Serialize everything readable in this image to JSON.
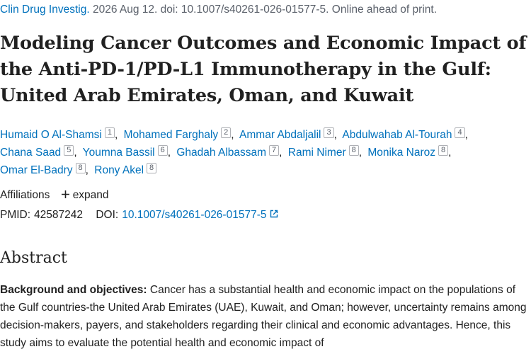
{
  "citation": {
    "journal": "Clin Drug Investig.",
    "details": "2026 Aug 12. doi: 10.1007/s40261-026-01577-5. Online ahead of print."
  },
  "title": "Modeling Cancer Outcomes and Economic Impact of the Anti-PD-1/PD-L1 Immunotherapy in the Gulf: United Arab Emirates, Oman, and Kuwait",
  "authors": [
    {
      "name": "Humaid O Al-Shamsi",
      "affiliation": "1"
    },
    {
      "name": "Mohamed Farghaly",
      "affiliation": "2"
    },
    {
      "name": "Ammar Abdaljalil",
      "affiliation": "3"
    },
    {
      "name": "Abdulwahab Al-Tourah",
      "affiliation": "4"
    },
    {
      "name": "Chana Saad",
      "affiliation": "5"
    },
    {
      "name": "Youmna Bassil",
      "affiliation": "6"
    },
    {
      "name": "Ghadah Albassam",
      "affiliation": "7"
    },
    {
      "name": "Rami Nimer",
      "affiliation": "8"
    },
    {
      "name": "Monika Naroz",
      "affiliation": "8"
    },
    {
      "name": "Omar El-Badry",
      "affiliation": "8"
    },
    {
      "name": "Rony Akel",
      "affiliation": "8"
    }
  ],
  "affiliations": {
    "label": "Affiliations",
    "toggle": "expand"
  },
  "identifiers": {
    "pmid_label": "PMID:",
    "pmid": "42587242",
    "doi_label": "DOI:",
    "doi": "10.1007/s40261-026-01577-5"
  },
  "abstract": {
    "heading": "Abstract",
    "label": "Background and objectives:",
    "text": "Cancer has a substantial health and economic impact on the populations of the Gulf countries-the United Arab Emirates (UAE), Kuwait, and Oman; however, uncertainty remains among decision-makers, payers, and stakeholders regarding their clinical and economic advantages. Hence, this study aims to evaluate the potential health and economic impact of"
  }
}
